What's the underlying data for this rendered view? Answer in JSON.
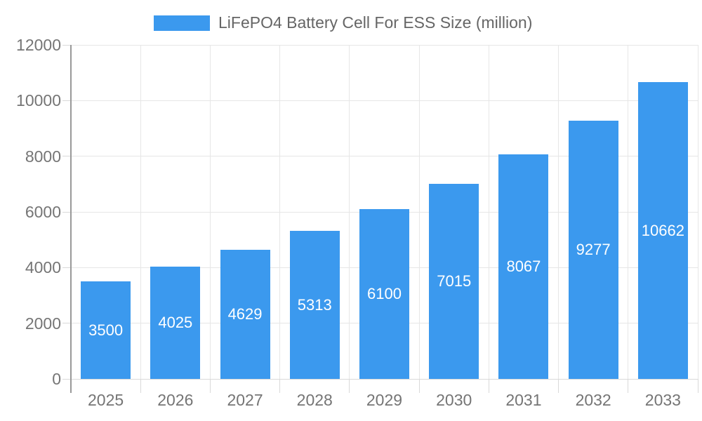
{
  "chart_data": {
    "type": "bar",
    "title": "LiFePO4 Battery Cell For ESS Size (million)",
    "legend": {
      "position": "top",
      "label": "LiFePO4 Battery Cell For ESS Size (million)"
    },
    "categories": [
      "2025",
      "2026",
      "2027",
      "2028",
      "2029",
      "2030",
      "2031",
      "2032",
      "2033"
    ],
    "values": [
      3500,
      4025,
      4629,
      5313,
      6100,
      7015,
      8067,
      9277,
      10662
    ],
    "xlabel": "",
    "ylabel": "",
    "ylim": [
      0,
      12000
    ],
    "yticks": [
      0,
      2000,
      4000,
      6000,
      8000,
      10000,
      12000
    ],
    "grid": "horizontal-and-vertical",
    "bar_labels_position": "inside-center",
    "colors": {
      "bar": "#3B99EE",
      "grid": "#E6E6E6",
      "tick": "#D9D9D9",
      "axis_line": "#999999",
      "axis_text": "#757575",
      "legend_text": "#666666",
      "bar_label_text": "#FFFFFF",
      "background": "#FFFFFF"
    }
  }
}
